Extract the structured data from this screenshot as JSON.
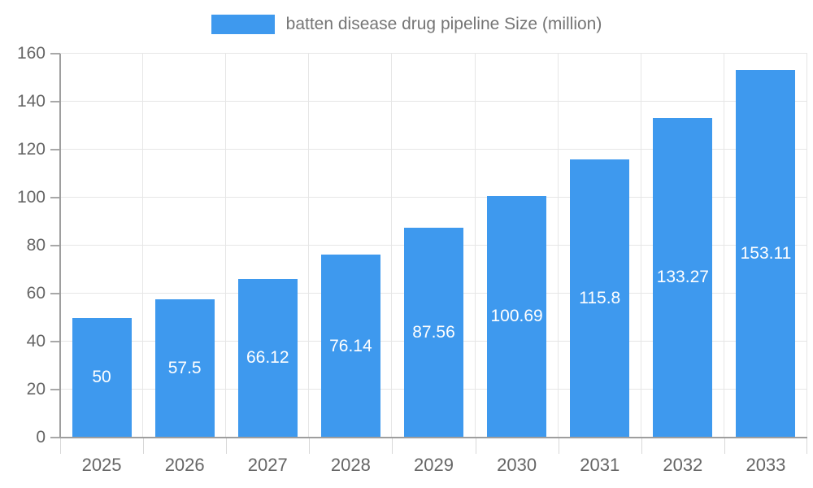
{
  "legend": {
    "label": "batten disease drug pipeline Size (million)"
  },
  "colors": {
    "bar": "#3e99ee",
    "grid": "#e6e6e6",
    "axis": "#9e9e9e",
    "axis_tick": "#a8a8a8",
    "x_tick": "#d8d8d8",
    "tick_label": "#666666",
    "legend_text": "#757575",
    "value_text": "#ffffff",
    "background": "#ffffff"
  },
  "chart_data": {
    "type": "bar",
    "title": "batten disease drug pipeline Size (million)",
    "categories": [
      "2025",
      "2026",
      "2027",
      "2028",
      "2029",
      "2030",
      "2031",
      "2032",
      "2033"
    ],
    "values": [
      50,
      57.5,
      66.12,
      76.14,
      87.56,
      100.69,
      115.8,
      133.27,
      153.11
    ],
    "value_labels": [
      "50",
      "57.5",
      "66.12",
      "76.14",
      "87.56",
      "100.69",
      "115.8",
      "133.27",
      "153.11"
    ],
    "xlabel": "",
    "ylabel": "",
    "ylim": [
      0,
      160
    ],
    "ytick_step": 20,
    "ytick_labels": [
      "0",
      "20",
      "40",
      "60",
      "80",
      "100",
      "120",
      "140",
      "160"
    ],
    "grid": true,
    "legend_position": "top",
    "series_name": "batten disease drug pipeline Size (million)"
  }
}
